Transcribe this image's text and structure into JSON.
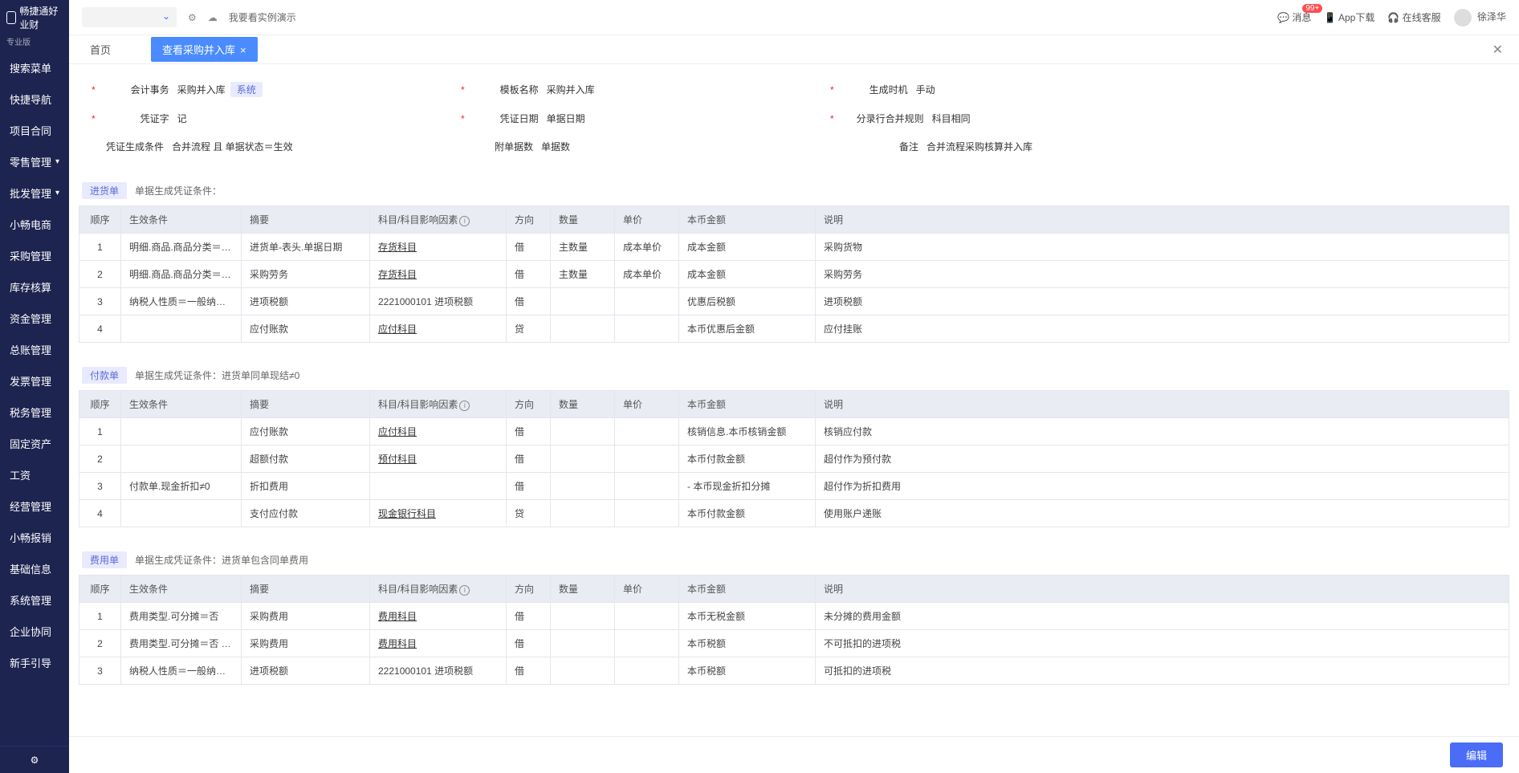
{
  "brand": {
    "name": "畅捷通好业财",
    "sub": "专业版"
  },
  "sidebar": {
    "items": [
      {
        "label": "搜索菜单"
      },
      {
        "label": "快捷导航"
      },
      {
        "label": "项目合同"
      },
      {
        "label": "零售管理",
        "expand": true
      },
      {
        "label": "批发管理",
        "expand": true
      },
      {
        "label": "小畅电商"
      },
      {
        "label": "采购管理"
      },
      {
        "label": "库存核算"
      },
      {
        "label": "资金管理"
      },
      {
        "label": "总账管理"
      },
      {
        "label": "发票管理"
      },
      {
        "label": "税务管理"
      },
      {
        "label": "固定资产"
      },
      {
        "label": "工资"
      },
      {
        "label": "经营管理"
      },
      {
        "label": "小畅报销"
      },
      {
        "label": "基础信息"
      },
      {
        "label": "系统管理"
      },
      {
        "label": "企业协同"
      },
      {
        "label": "新手引导"
      }
    ]
  },
  "topbar": {
    "demo": "我要看实例演示",
    "msg": "消息",
    "badge": "99+",
    "download": "App下载",
    "service": "在线客服",
    "user": "徐泽华"
  },
  "tabs": {
    "items": [
      {
        "label": "首页"
      },
      {
        "label": " ",
        "blur": true
      },
      {
        "label": "查看采购并入库",
        "active": true
      }
    ]
  },
  "form": {
    "f1": {
      "label": "会计事务",
      "val": "采购并入库",
      "tag": "系统"
    },
    "f2": {
      "label": "模板名称",
      "val": "采购并入库"
    },
    "f3": {
      "label": "生成时机",
      "val": "手动"
    },
    "f4": {
      "label": "凭证字",
      "val": "记"
    },
    "f5": {
      "label": "凭证日期",
      "val": "单据日期"
    },
    "f6": {
      "label": "分录行合并规则",
      "val": "科目相同"
    },
    "f7": {
      "label": "凭证生成条件",
      "val": "合并流程 且 单据状态＝生效"
    },
    "f8": {
      "label": "附单据数",
      "val": "单据数"
    },
    "f9": {
      "label": "备注",
      "val": "合并流程采购核算并入库"
    }
  },
  "cols": {
    "seq": "顺序",
    "cond": "生效条件",
    "summary": "摘要",
    "subject": "科目/科目影响因素",
    "dir": "方向",
    "qty": "数量",
    "price": "单价",
    "amount": "本币金额",
    "note": "说明"
  },
  "sections": [
    {
      "title": "进货单",
      "cond": "单据生成凭证条件：",
      "rows": [
        {
          "seq": "1",
          "cond": "明细.商品.商品分类＝货物",
          "summary": "进货单-表头.单据日期",
          "subject": "存货科目",
          "link": true,
          "dir": "借",
          "qty": "主数量",
          "price": "成本单价",
          "amount": "成本金额",
          "note": "采购货物"
        },
        {
          "seq": "2",
          "cond": "明细.商品.商品分类＝劳务",
          "summary": "采购劳务",
          "subject": "存货科目",
          "link": true,
          "dir": "借",
          "qty": "主数量",
          "price": "成本单价",
          "amount": "成本金额",
          "note": "采购劳务"
        },
        {
          "seq": "3",
          "cond": "纳税人性质＝一般纳税人 且 支",
          "summary": "进项税额",
          "subject": "2221000101 进项税额",
          "dir": "借",
          "qty": "",
          "price": "",
          "amount": "优惠后税额",
          "note": "进项税额"
        },
        {
          "seq": "4",
          "cond": "",
          "summary": "应付账款",
          "subject": "应付科目",
          "link": true,
          "dir": "贷",
          "qty": "",
          "price": "",
          "amount": "本币优惠后金额",
          "note": "应付挂账"
        }
      ]
    },
    {
      "title": "付款单",
      "cond": "单据生成凭证条件：进货单同单现结≠0",
      "rows": [
        {
          "seq": "1",
          "cond": "",
          "summary": "应付账款",
          "subject": "应付科目",
          "link": true,
          "dir": "借",
          "qty": "",
          "price": "",
          "amount": "核销信息.本币核销金额",
          "note": "核销应付款"
        },
        {
          "seq": "2",
          "cond": "",
          "summary": "超额付款",
          "subject": "预付科目",
          "link": true,
          "dir": "借",
          "qty": "",
          "price": "",
          "amount": "本币付款金额",
          "note": "超付作为预付款"
        },
        {
          "seq": "3",
          "cond": "付款单.现金折扣≠0",
          "summary": "折扣费用",
          "subject": "",
          "dir": "借",
          "qty": "",
          "price": "",
          "amount": "- 本币现金折扣分摊",
          "note": "超付作为折扣费用"
        },
        {
          "seq": "4",
          "cond": "",
          "summary": "支付应付款",
          "subject": "现金银行科目",
          "link": true,
          "dir": "贷",
          "qty": "",
          "price": "",
          "amount": "本币付款金额",
          "note": "使用账户递账"
        }
      ]
    },
    {
      "title": "费用单",
      "cond": "单据生成凭证条件：进货单包含同单费用",
      "rows": [
        {
          "seq": "1",
          "cond": "费用类型.可分摊＝否",
          "summary": "采购费用",
          "subject": "费用科目",
          "link": true,
          "dir": "借",
          "qty": "",
          "price": "",
          "amount": "本币无税金额",
          "note": "未分摊的费用金额"
        },
        {
          "seq": "2",
          "cond": "费用类型.可分摊＝否 且 (纳税",
          "summary": "采购费用",
          "subject": "费用科目",
          "link": true,
          "dir": "借",
          "qty": "",
          "price": "",
          "amount": "本币税额",
          "note": "不可抵扣的进项税"
        },
        {
          "seq": "3",
          "cond": "纳税人性质＝一般纳税人 且 (",
          "summary": "进项税额",
          "subject": "2221000101 进项税额",
          "dir": "借",
          "qty": "",
          "price": "",
          "amount": "本币税额",
          "note": "可抵扣的进项税"
        }
      ]
    }
  ],
  "footer": {
    "edit": "编辑"
  }
}
